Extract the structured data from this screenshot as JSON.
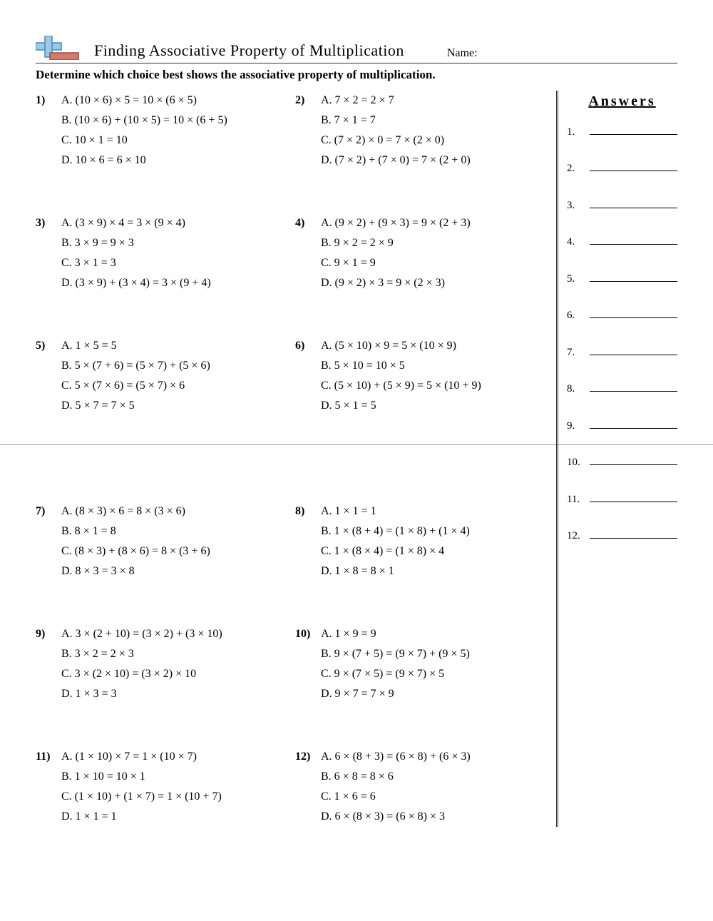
{
  "header": {
    "title": "Finding Associative Property of Multiplication",
    "name_label": "Name:",
    "logo_colors": {
      "cross": "#9cc9e8",
      "cross_border": "#4a88b8",
      "brick": "#d47a6d"
    }
  },
  "instruction": "Determine which choice best shows the associative property of multiplication.",
  "answers_title": "Answers",
  "answer_count": 12,
  "questions": [
    {
      "n": "1)",
      "choices": [
        "A. (10 × 6) × 5 = 10 × (6 × 5)",
        "B. (10 × 6) + (10 × 5) = 10 × (6 + 5)",
        "C. 10 × 1 = 10",
        "D. 10 × 6 = 6 × 10"
      ]
    },
    {
      "n": "2)",
      "choices": [
        "A. 7 × 2 = 2 × 7",
        "B. 7 × 1 = 7",
        "C. (7 × 2) × 0 = 7 × (2 × 0)",
        "D. (7 × 2) + (7 × 0) = 7 × (2 + 0)"
      ]
    },
    {
      "n": "3)",
      "choices": [
        "A. (3 × 9) × 4 = 3 × (9 × 4)",
        "B. 3 × 9 = 9 × 3",
        "C. 3 × 1 = 3",
        "D. (3 × 9) + (3 × 4) = 3 × (9 + 4)"
      ]
    },
    {
      "n": "4)",
      "choices": [
        "A. (9 × 2) + (9 × 3) = 9 × (2 + 3)",
        "B. 9 × 2 = 2 × 9",
        "C. 9 × 1 = 9",
        "D. (9 × 2) × 3 = 9 × (2 × 3)"
      ]
    },
    {
      "n": "5)",
      "choices": [
        "A. 1 × 5 = 5",
        "B. 5 × (7 + 6) = (5 × 7) + (5 × 6)",
        "C. 5 × (7 × 6) = (5 × 7) × 6",
        "D. 5 × 7 = 7 × 5"
      ]
    },
    {
      "n": "6)",
      "choices": [
        "A. (5 × 10) × 9 = 5 × (10 × 9)",
        "B. 5 × 10 = 10 × 5",
        "C. (5 × 10) + (5 × 9) = 5 × (10 + 9)",
        "D. 5 × 1 = 5"
      ]
    },
    {
      "n": "7)",
      "choices": [
        "A. (8 × 3) × 6 = 8 × (3 × 6)",
        "B. 8 × 1 = 8",
        "C. (8 × 3) + (8 × 6) = 8 × (3 + 6)",
        "D. 8 × 3 = 3 × 8"
      ]
    },
    {
      "n": "8)",
      "choices": [
        "A. 1 × 1 = 1",
        "B. 1 × (8 + 4) = (1 × 8) + (1 × 4)",
        "C. 1 × (8 × 4) = (1 × 8) × 4",
        "D. 1 × 8 = 8 × 1"
      ]
    },
    {
      "n": "9)",
      "choices": [
        "A. 3 × (2 + 10) = (3 × 2) + (3 × 10)",
        "B. 3 × 2 = 2 × 3",
        "C. 3 × (2 × 10) = (3 × 2) × 10",
        "D. 1 × 3 = 3"
      ]
    },
    {
      "n": "10)",
      "choices": [
        "A. 1 × 9 = 9",
        "B. 9 × (7 + 5) = (9 × 7) + (9 × 5)",
        "C. 9 × (7 × 5) = (9 × 7) × 5",
        "D. 9 × 7 = 7 × 9"
      ]
    },
    {
      "n": "11)",
      "choices": [
        "A. (1 × 10) × 7 = 1 × (10 × 7)",
        "B. 1 × 10 = 10 × 1",
        "C. (1 × 10) + (1 × 7) = 1 × (10 + 7)",
        "D. 1 × 1 = 1"
      ]
    },
    {
      "n": "12)",
      "choices": [
        "A. 6 × (8 + 3) = (6 × 8) + (6 × 3)",
        "B. 6 × 8 = 8 × 6",
        "C. 1 × 6 = 6",
        "D. 6 × (8 × 3) = (6 × 8) × 3"
      ]
    }
  ]
}
